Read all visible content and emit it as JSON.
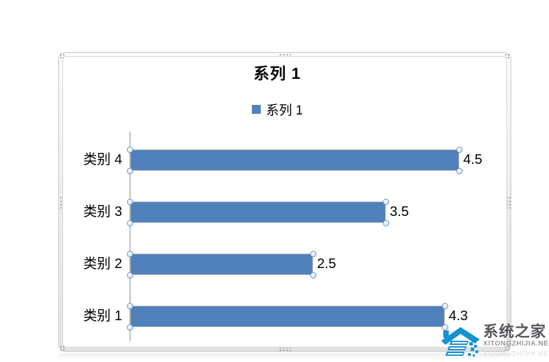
{
  "chart": {
    "title": "系列 1",
    "legend": {
      "label": "系列 1",
      "marker_color": "#4F81BD",
      "position": "top"
    },
    "selected": true
  },
  "chart_data": {
    "type": "bar",
    "orientation": "horizontal",
    "title": "系列 1",
    "categories": [
      "类别 1",
      "类别 2",
      "类别 3",
      "类别 4"
    ],
    "series": [
      {
        "name": "系列 1",
        "values": [
          4.3,
          2.5,
          3.5,
          4.5
        ]
      }
    ],
    "rows_top_to_bottom": [
      {
        "category": "类别 4",
        "value": 4.5,
        "label": "4.5"
      },
      {
        "category": "类别 3",
        "value": 3.5,
        "label": "3.5"
      },
      {
        "category": "类别 2",
        "value": 2.5,
        "label": "2.5"
      },
      {
        "category": "类别 1",
        "value": 4.3,
        "label": "4.3"
      }
    ],
    "xlim": [
      0,
      5
    ],
    "bar_color": "#4F81BD",
    "grid": false,
    "legend_position": "top",
    "value_labels_shown": true,
    "selection_handles_shown": true
  },
  "watermark": {
    "site_name": "系统之家",
    "site_url": "XITONGZHIJIA.NET",
    "logo_color": "#1791d4"
  }
}
